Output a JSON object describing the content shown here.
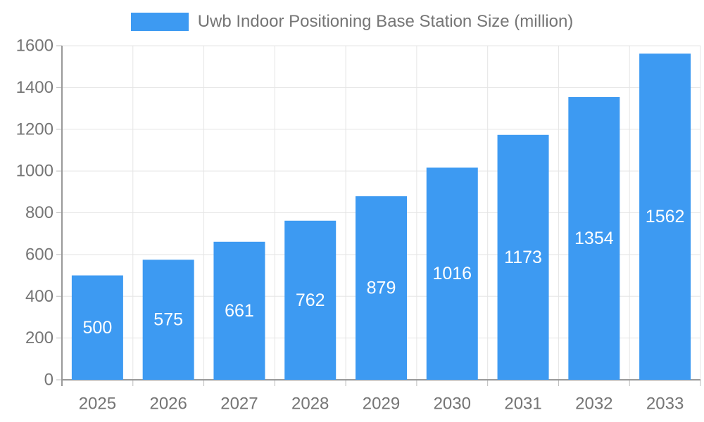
{
  "chart_data": {
    "type": "bar",
    "title": "Uwb Indoor Positioning Base Station Size (million)",
    "series_name": "Uwb Indoor Positioning Base Station Size (million)",
    "categories": [
      "2025",
      "2026",
      "2027",
      "2028",
      "2029",
      "2030",
      "2031",
      "2032",
      "2033"
    ],
    "values": [
      500,
      575,
      661,
      762,
      879,
      1016,
      1173,
      1354,
      1562
    ],
    "xlabel": "",
    "ylabel": "",
    "ylim": [
      0,
      1600
    ],
    "ytick_interval": 200,
    "yticks": [
      0,
      200,
      400,
      600,
      800,
      1000,
      1200,
      1400,
      1600
    ],
    "grid": true,
    "legend_position": "top",
    "bar_labels_inside": true,
    "colors": {
      "bar": "#3D9AF2",
      "bar_label": "#ffffff",
      "grid": "#e5e5e5",
      "axis": "#999999",
      "tick": "#bbbbbb",
      "text": "#757575",
      "background": "#ffffff"
    }
  }
}
